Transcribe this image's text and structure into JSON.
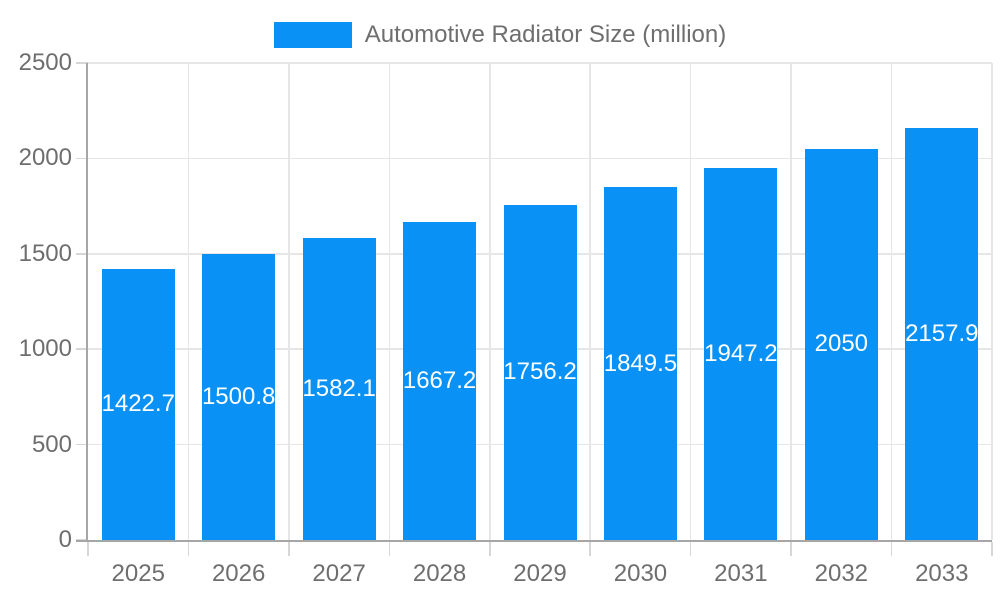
{
  "chart_data": {
    "type": "bar",
    "title": "Automotive Radiator Size (million)",
    "categories": [
      "2025",
      "2026",
      "2027",
      "2028",
      "2029",
      "2030",
      "2031",
      "2032",
      "2033"
    ],
    "values": [
      1422.7,
      1500.8,
      1582.1,
      1667.2,
      1756.2,
      1849.5,
      1947.2,
      2050,
      2157.9
    ],
    "value_labels": [
      "1422.7",
      "1500.8",
      "1582.1",
      "1667.2",
      "1756.2",
      "1849.5",
      "1947.2",
      "2050",
      "2157.9"
    ],
    "xlabel": "",
    "ylabel": "",
    "ylim": [
      0,
      2500
    ],
    "yticks": [
      0,
      500,
      1000,
      1500,
      2000,
      2500
    ],
    "ytick_labels": [
      "0",
      "500",
      "1000",
      "1500",
      "2000",
      "2500"
    ],
    "grid": true,
    "legend_position": "top-center",
    "colors": {
      "bar": "#0991f5",
      "grid_line": "#e6e6e6",
      "tick_mark": "#d6d6d6",
      "axis_line": "#a6a6a6",
      "axis_text": "#6e6e6e",
      "legend_text": "#6e6e6e",
      "bar_label_text": "#ffffff",
      "background": "#ffffff"
    }
  }
}
